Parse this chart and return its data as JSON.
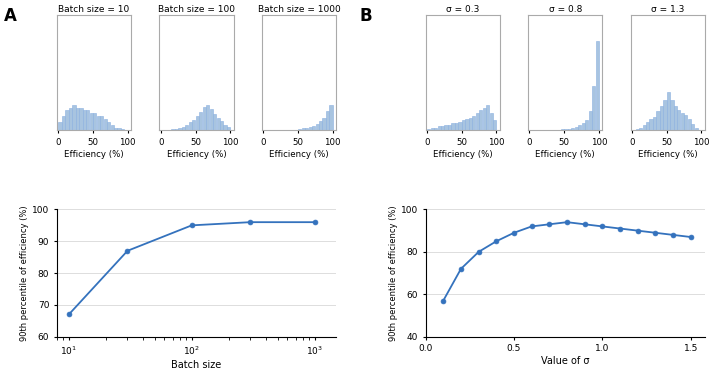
{
  "hist_A_titles": [
    "Batch size = 10",
    "Batch size = 100",
    "Batch size = 1000"
  ],
  "hist_B_titles": [
    "σ = 0.3",
    "σ = 0.8",
    "σ = 1.3"
  ],
  "hist_xlabel": "Efficiency (%)",
  "hist_A_data": [
    [
      3,
      5,
      7,
      8,
      9,
      8,
      8,
      7,
      7,
      6,
      6,
      5,
      5,
      4,
      3,
      2,
      1,
      1,
      0.5,
      0.3
    ],
    [
      0.5,
      0.5,
      0.5,
      1,
      1.5,
      2,
      3,
      5,
      7,
      9,
      12,
      16,
      20,
      22,
      18,
      14,
      11,
      8,
      5,
      3
    ],
    [
      0.2,
      0.2,
      0.3,
      0.4,
      0.5,
      0.8,
      1,
      1.5,
      2,
      3,
      5,
      8,
      11,
      15,
      19,
      26,
      35,
      50,
      75,
      100
    ]
  ],
  "hist_A_ylim_scale": [
    4.5,
    4.5,
    4.5
  ],
  "hist_B_data": [
    [
      1,
      2,
      2,
      3,
      3,
      4,
      4,
      5,
      5,
      6,
      7,
      8,
      9,
      10,
      12,
      14,
      16,
      18,
      12,
      7
    ],
    [
      0.5,
      0.5,
      0.5,
      1,
      1,
      1,
      1,
      1,
      1,
      2,
      2,
      2,
      3,
      4,
      6,
      8,
      12,
      22,
      50,
      100
    ],
    [
      0.5,
      1,
      2,
      4,
      6,
      8,
      10,
      14,
      18,
      22,
      28,
      22,
      18,
      15,
      13,
      11,
      8,
      5,
      2,
      0.5
    ]
  ],
  "hist_B_ylim_scale": [
    4.5,
    1.3,
    3.0
  ],
  "line_A_x": [
    10,
    30,
    100,
    300,
    1000
  ],
  "line_A_y": [
    67,
    87,
    95,
    96,
    96
  ],
  "line_A_xlabel": "Batch size",
  "line_A_ylabel": "90th percentile of efficiency (%)",
  "line_A_ylim": [
    60,
    100
  ],
  "line_B_x": [
    0.1,
    0.2,
    0.3,
    0.4,
    0.5,
    0.6,
    0.7,
    0.8,
    0.9,
    1.0,
    1.1,
    1.2,
    1.3,
    1.4,
    1.5
  ],
  "line_B_y": [
    57,
    72,
    80,
    85,
    89,
    92,
    93,
    94,
    93,
    92,
    91,
    90,
    89,
    88,
    87
  ],
  "line_B_xlabel": "Value of σ",
  "line_B_ylabel": "90th percentile of efficiency (%)",
  "line_B_ylim": [
    40,
    100
  ],
  "line_color": "#3472bd",
  "bar_color": "#a8c4e0",
  "bar_edge_color": "#8aafe0",
  "panel_A_label": "A",
  "panel_B_label": "B",
  "fig_bg": "#ffffff"
}
